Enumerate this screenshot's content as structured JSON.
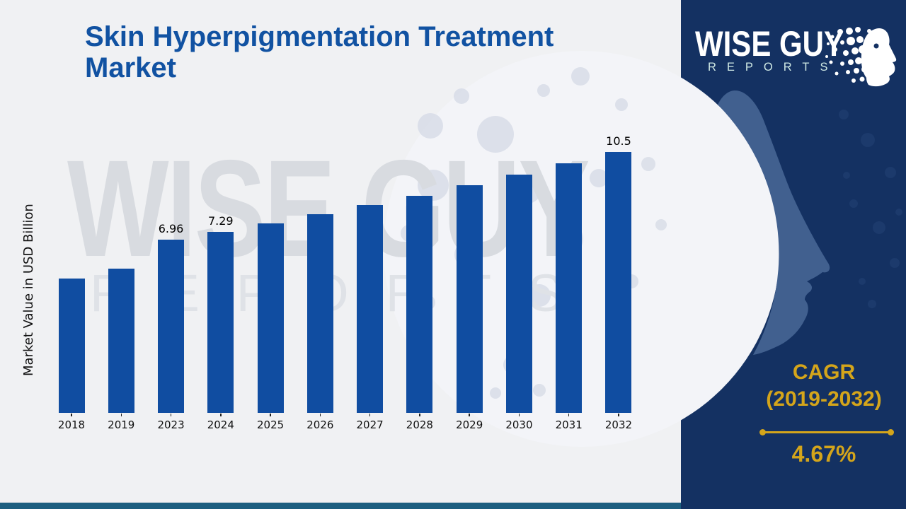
{
  "title": {
    "line1": "Skin Hyperpigmentation Treatment",
    "line2": "Market"
  },
  "brand": {
    "name": "WISE GUY",
    "subname": "REPORTS",
    "logo_icon": "head-profile-dots-icon"
  },
  "watermark": {
    "line1": "WISE GUY",
    "line2": "REPORTS"
  },
  "cagr": {
    "heading": "CAGR",
    "range": "(2019-2032)",
    "value": "4.67%"
  },
  "chart_data": {
    "type": "bar",
    "title": "Skin Hyperpigmentation Treatment Market",
    "xlabel": "",
    "ylabel": "Market Value in USD Billion",
    "categories": [
      "2018",
      "2019",
      "2023",
      "2024",
      "2025",
      "2026",
      "2027",
      "2028",
      "2029",
      "2030",
      "2031",
      "2032"
    ],
    "values": [
      5.4,
      5.8,
      6.96,
      7.29,
      7.63,
      7.99,
      8.36,
      8.75,
      9.16,
      9.59,
      10.04,
      10.5
    ],
    "bar_value_labels": [
      "",
      "",
      "6.96",
      "7.29",
      "",
      "",
      "",
      "",
      "",
      "",
      "",
      "10.5"
    ],
    "ylim": [
      0,
      11
    ],
    "grid": false,
    "legend": null,
    "bar_color": "#104da1"
  },
  "colors": {
    "background": "#f0f1f3",
    "panel_navy": "#143162",
    "bar_blue": "#104da1",
    "title_blue": "#1152a2",
    "accent_gold": "#d4a51b",
    "footer_teal": "#1d5f80",
    "watermark_gray": "#d8dbe0",
    "circle_fill": "#f3f4f8",
    "face_blue": "#41608f",
    "logo_white": "#ffffff",
    "reports_mint": "#cfe9e4"
  }
}
